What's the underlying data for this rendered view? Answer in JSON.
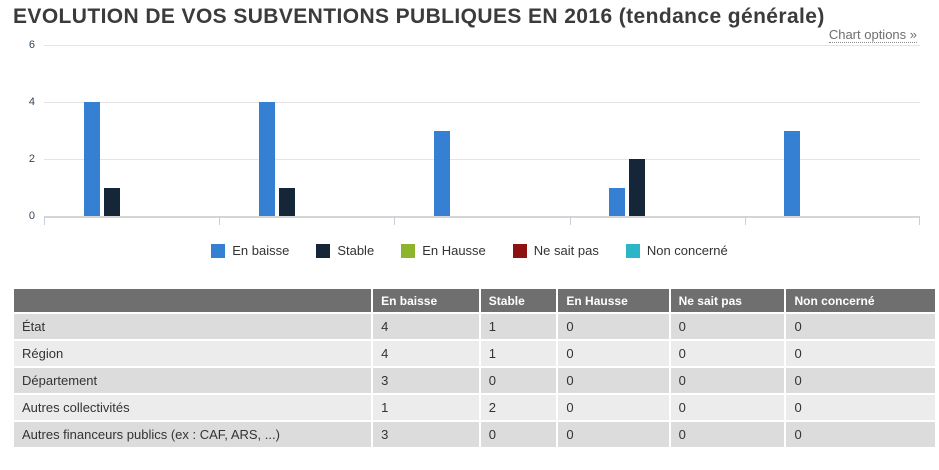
{
  "header": {
    "title": "EVOLUTION DE VOS SUBVENTIONS PUBLIQUES EN 2016 (tendance générale)",
    "chart_options_label": "Chart options »"
  },
  "chart_data": {
    "type": "bar",
    "title": "EVOLUTION DE VOS SUBVENTIONS PUBLIQUES EN 2016 (tendance générale)",
    "categories": [
      "État",
      "Région",
      "Département",
      "Autres collectivités",
      "Autres financeurs publics (ex : CAF, ARS, ...)"
    ],
    "series": [
      {
        "name": "En baisse",
        "color": "#3580d3",
        "values": [
          4,
          4,
          3,
          1,
          3
        ]
      },
      {
        "name": "Stable",
        "color": "#152639",
        "values": [
          1,
          1,
          0,
          2,
          0
        ]
      },
      {
        "name": "En Hausse",
        "color": "#8cb42c",
        "values": [
          0,
          0,
          0,
          0,
          0
        ]
      },
      {
        "name": "Ne sait pas",
        "color": "#8e1111",
        "values": [
          0,
          0,
          0,
          0,
          0
        ]
      },
      {
        "name": "Non concerné",
        "color": "#2bb6c8",
        "values": [
          0,
          0,
          0,
          0,
          0
        ]
      }
    ],
    "ylim": [
      0,
      6
    ],
    "yticks": [
      0,
      2,
      4,
      6
    ],
    "grid": true,
    "legend_position": "bottom",
    "x_axis_labels_visible": false
  },
  "table": {
    "columns": [
      "",
      "En baisse",
      "Stable",
      "En Hausse",
      "Ne sait pas",
      "Non concerné"
    ],
    "rows": [
      {
        "label": "État",
        "values": [
          4,
          1,
          0,
          0,
          0
        ]
      },
      {
        "label": "Région",
        "values": [
          4,
          1,
          0,
          0,
          0
        ]
      },
      {
        "label": "Département",
        "values": [
          3,
          0,
          0,
          0,
          0
        ]
      },
      {
        "label": "Autres collectivités",
        "values": [
          1,
          2,
          0,
          0,
          0
        ]
      },
      {
        "label": "Autres financeurs publics (ex : CAF, ARS, ...)",
        "values": [
          3,
          0,
          0,
          0,
          0
        ]
      }
    ],
    "header_bg": "#6f6f6f",
    "row_bg_odd": "#dcdcdc",
    "row_bg_even": "#ececec"
  }
}
